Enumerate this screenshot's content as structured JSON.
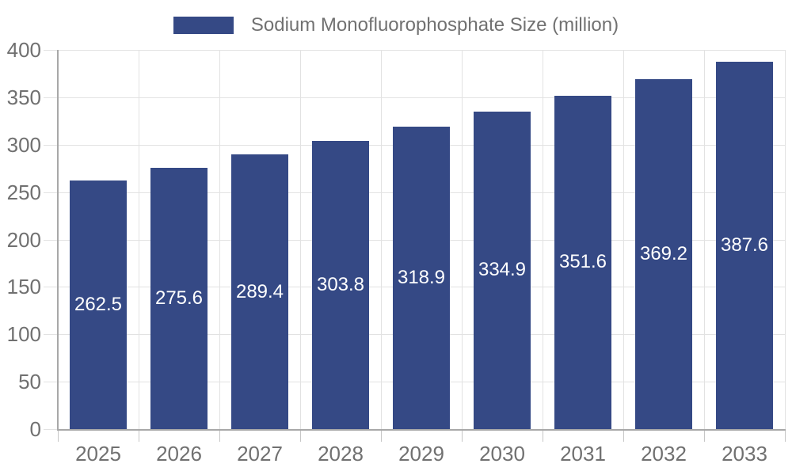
{
  "chart_data": {
    "type": "bar",
    "title": "Sodium Monofluorophosphate Size (million)",
    "categories": [
      "2025",
      "2026",
      "2027",
      "2028",
      "2029",
      "2030",
      "2031",
      "2032",
      "2033"
    ],
    "values": [
      262.5,
      275.6,
      289.4,
      303.8,
      318.9,
      334.9,
      351.6,
      369.2,
      387.6
    ],
    "xlabel": "",
    "ylabel": "",
    "ylim": [
      0,
      400
    ],
    "yticks": [
      0,
      50,
      100,
      150,
      200,
      250,
      300,
      350,
      400
    ],
    "grid": true,
    "legend_position": "top",
    "value_label_position": "inside-middle"
  },
  "colors": {
    "bar": "#354985",
    "grid": "#e2e2e2",
    "axis": "#a8a8a8",
    "tick": "#c6c6c6",
    "axis_label": "#707070",
    "legend_text": "#717171",
    "value_label": "#ffffff",
    "background": "#ffffff"
  }
}
